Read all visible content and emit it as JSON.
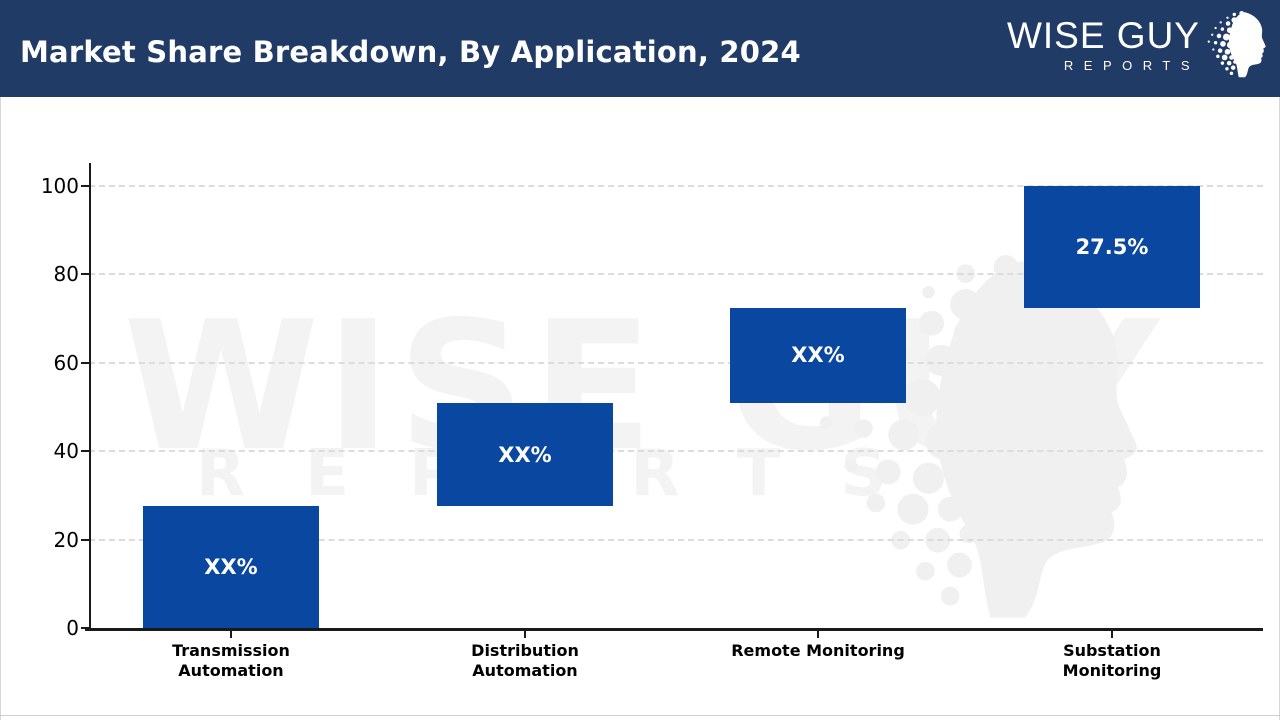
{
  "header": {
    "title": "Market Share Breakdown, By Application, 2024",
    "logo": {
      "line1": "WISE GUY",
      "line2": "REPORTS"
    }
  },
  "watermark": {
    "line1": "WISE GUY",
    "line2": "REPORTS"
  },
  "colors": {
    "header_bg": "#213b67",
    "bar": "#0a47a0",
    "bar_label_text": "#ffffff",
    "grid": "#dcdcdc",
    "axis": "#1a1a1a",
    "watermark": "#f0f0f0"
  },
  "chart_data": {
    "type": "bar",
    "subtype": "floating-waterfall",
    "title": "Market Share Breakdown, By Application, 2024",
    "xlabel": "",
    "ylabel": "",
    "ylim": [
      0,
      100
    ],
    "yticks": [
      0,
      20,
      40,
      60,
      80,
      100
    ],
    "grid": "horizontal-dashed",
    "legend": "none",
    "categories": [
      "Transmission Automation",
      "Distribution Automation",
      "Remote Monitoring",
      "Substation Monitoring"
    ],
    "bars": [
      {
        "category": "Transmission Automation",
        "label_lines": [
          "Transmission",
          "Automation"
        ],
        "start": 0,
        "end": 27.5,
        "value_label": "XX%"
      },
      {
        "category": "Distribution Automation",
        "label_lines": [
          "Distribution",
          "Automation"
        ],
        "start": 27.5,
        "end": 51,
        "value_label": "XX%"
      },
      {
        "category": "Remote Monitoring",
        "label_lines": [
          "Remote Monitoring"
        ],
        "start": 51,
        "end": 72.5,
        "value_label": "XX%"
      },
      {
        "category": "Substation Monitoring",
        "label_lines": [
          "Substation",
          "Monitoring"
        ],
        "start": 72.5,
        "end": 100,
        "value_label": "27.5%"
      }
    ]
  }
}
